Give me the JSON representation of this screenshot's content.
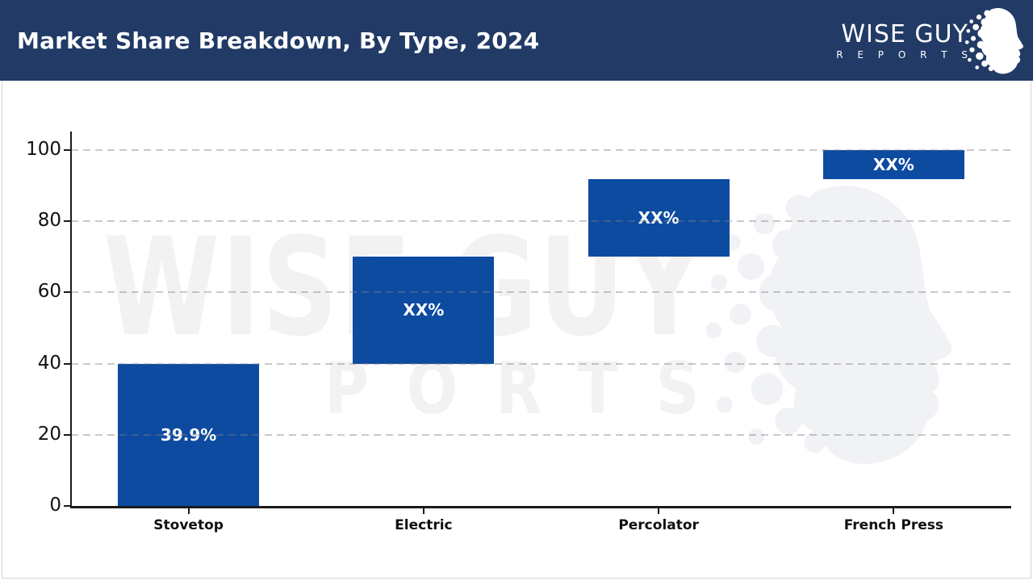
{
  "header": {
    "title": "Market Share Breakdown, By Type, 2024",
    "logo": {
      "line1": "WISE GUY",
      "line2": "R E P O R T S"
    }
  },
  "watermark": {
    "line1": "WISE GUY",
    "line2": "PORTS"
  },
  "chart_data": {
    "type": "bar",
    "variant": "waterfall",
    "title": "Market Share Breakdown, By Type, 2024",
    "categories": [
      "Stovetop",
      "Electric",
      "Percolator",
      "French Press"
    ],
    "segments": [
      {
        "category": "Stovetop",
        "start": 0,
        "end": 39.9,
        "label": "39.9%"
      },
      {
        "category": "Electric",
        "start": 40,
        "end": 70,
        "label": "XX%"
      },
      {
        "category": "Percolator",
        "start": 70,
        "end": 91.9,
        "label": "XX%"
      },
      {
        "category": "French Press",
        "start": 91.9,
        "end": 100,
        "label": "XX%"
      }
    ],
    "y_ticks": [
      0,
      20,
      40,
      60,
      80,
      100
    ],
    "ylim": [
      0,
      105
    ],
    "xlabel": "",
    "ylabel": "",
    "grid": "horizontal-dashed",
    "legend": "none",
    "bar_color": "#0d4ba1",
    "bar_label_color": "#ffffff",
    "axis_color": "#1a1a1a",
    "header_bg_color": "#213a66"
  }
}
